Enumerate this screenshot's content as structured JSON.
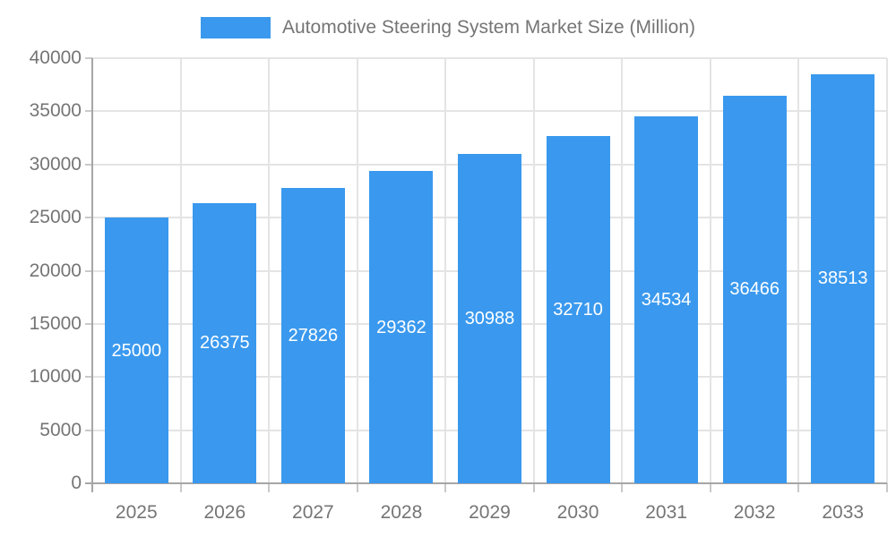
{
  "chart_data": {
    "type": "bar",
    "title": "Automotive Steering System Market Size (Million)",
    "categories": [
      "2025",
      "2026",
      "2027",
      "2028",
      "2029",
      "2030",
      "2031",
      "2032",
      "2033"
    ],
    "values": [
      25000,
      26375,
      27826,
      29362,
      30988,
      32710,
      34534,
      36466,
      38513
    ],
    "xlabel": "",
    "ylabel": "",
    "ylim": [
      0,
      40000
    ],
    "ytick_step": 5000,
    "ytick_labels": [
      "0",
      "5000",
      "10000",
      "15000",
      "20000",
      "25000",
      "30000",
      "35000",
      "40000"
    ],
    "grid": true,
    "legend_position": "top",
    "bar_labels_inside": true,
    "colors": {
      "bar": "#3A99EE",
      "bar_label_text": "#ffffff",
      "gridline": "#E4E4E4",
      "axis_line": "#A6A6A6",
      "tick": "#C9C9C9",
      "axis_text": "#757575",
      "background": "#ffffff"
    }
  }
}
